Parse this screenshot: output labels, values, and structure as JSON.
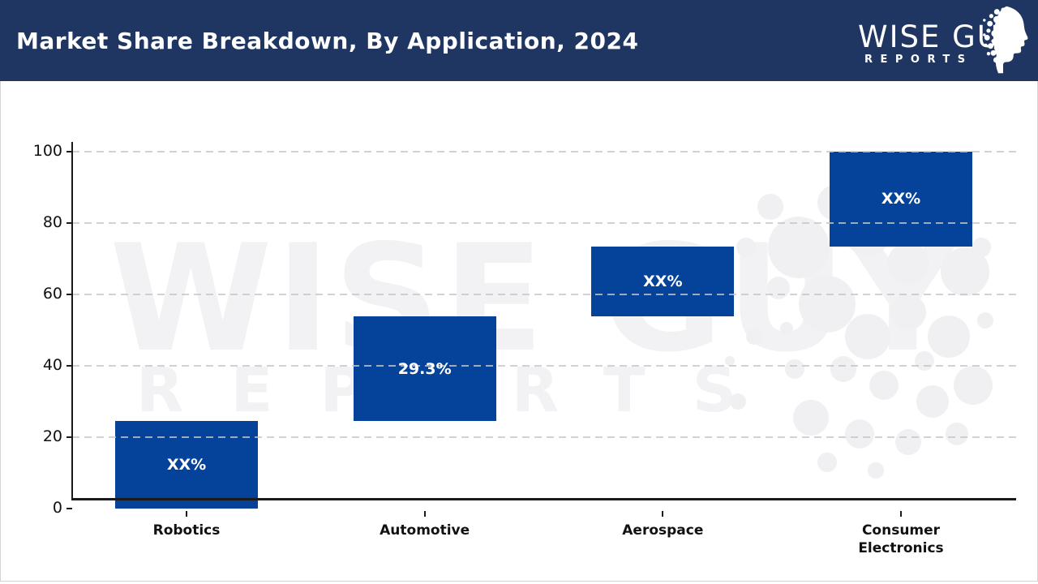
{
  "header": {
    "title": "Market Share Breakdown, By Application, 2024",
    "logo": {
      "primary": "WISE GUY",
      "secondary": "REPORTS"
    }
  },
  "watermark": {
    "primary": "WISE GUY",
    "secondary": "REPORTS"
  },
  "chart_data": {
    "type": "bar",
    "subtype": "floating-waterfall",
    "title": "Market Share Breakdown, By Application, 2024",
    "categories": [
      "Robotics",
      "Automotive",
      "Aerospace",
      "Consumer Electronics"
    ],
    "segments": [
      {
        "category": "Robotics",
        "start": 0,
        "end": 24.5,
        "label": "XX%"
      },
      {
        "category": "Automotive",
        "start": 24.5,
        "end": 53.8,
        "label": "29.3%"
      },
      {
        "category": "Aerospace",
        "start": 53.8,
        "end": 73.5,
        "label": "XX%"
      },
      {
        "category": "Consumer Electronics",
        "start": 73.5,
        "end": 100,
        "label": "XX%"
      }
    ],
    "ylim": [
      0,
      100
    ],
    "yticks": [
      0,
      20,
      40,
      60,
      80,
      100
    ],
    "grid": "horizontal-dashed",
    "legend_position": "none",
    "bar_color": "#05439A"
  },
  "colors": {
    "header_bg": "#1F3562",
    "bar": "#05439A",
    "axis": "#1A1A1A",
    "grid": "#D9D9D9",
    "watermark": "#F2F2F4",
    "border": "#D4D4D4"
  }
}
